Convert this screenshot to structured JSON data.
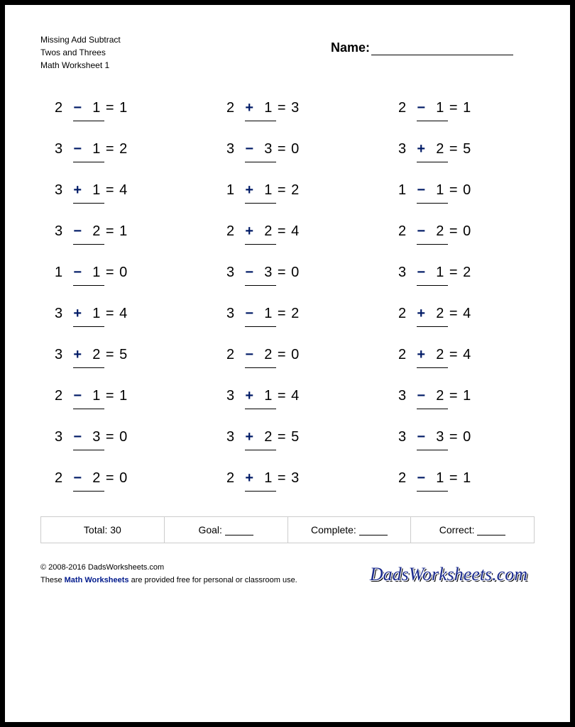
{
  "header": {
    "title_line1": "Missing Add Subtract",
    "title_line2": "Twos and Threes",
    "title_line3": "Math Worksheet 1",
    "name_label": "Name:"
  },
  "styling": {
    "operator_color": "#001a66",
    "text_color": "#000000",
    "border_color": "#000000",
    "summary_border_color": "#cccccc",
    "problem_fontsize": 20,
    "header_fontsize": 12,
    "name_fontsize": 18,
    "columns": 3,
    "rows": 10
  },
  "problems": [
    {
      "a": "2",
      "op": "−",
      "b": "1",
      "r": "1"
    },
    {
      "a": "2",
      "op": "+",
      "b": "1",
      "r": "3"
    },
    {
      "a": "2",
      "op": "−",
      "b": "1",
      "r": "1"
    },
    {
      "a": "3",
      "op": "−",
      "b": "1",
      "r": "2"
    },
    {
      "a": "3",
      "op": "−",
      "b": "3",
      "r": "0"
    },
    {
      "a": "3",
      "op": "+",
      "b": "2",
      "r": "5"
    },
    {
      "a": "3",
      "op": "+",
      "b": "1",
      "r": "4"
    },
    {
      "a": "1",
      "op": "+",
      "b": "1",
      "r": "2"
    },
    {
      "a": "1",
      "op": "−",
      "b": "1",
      "r": "0"
    },
    {
      "a": "3",
      "op": "−",
      "b": "2",
      "r": "1"
    },
    {
      "a": "2",
      "op": "+",
      "b": "2",
      "r": "4"
    },
    {
      "a": "2",
      "op": "−",
      "b": "2",
      "r": "0"
    },
    {
      "a": "1",
      "op": "−",
      "b": "1",
      "r": "0"
    },
    {
      "a": "3",
      "op": "−",
      "b": "3",
      "r": "0"
    },
    {
      "a": "3",
      "op": "−",
      "b": "1",
      "r": "2"
    },
    {
      "a": "3",
      "op": "+",
      "b": "1",
      "r": "4"
    },
    {
      "a": "3",
      "op": "−",
      "b": "1",
      "r": "2"
    },
    {
      "a": "2",
      "op": "+",
      "b": "2",
      "r": "4"
    },
    {
      "a": "3",
      "op": "+",
      "b": "2",
      "r": "5"
    },
    {
      "a": "2",
      "op": "−",
      "b": "2",
      "r": "0"
    },
    {
      "a": "2",
      "op": "+",
      "b": "2",
      "r": "4"
    },
    {
      "a": "2",
      "op": "−",
      "b": "1",
      "r": "1"
    },
    {
      "a": "3",
      "op": "+",
      "b": "1",
      "r": "4"
    },
    {
      "a": "3",
      "op": "−",
      "b": "2",
      "r": "1"
    },
    {
      "a": "3",
      "op": "−",
      "b": "3",
      "r": "0"
    },
    {
      "a": "3",
      "op": "+",
      "b": "2",
      "r": "5"
    },
    {
      "a": "3",
      "op": "−",
      "b": "3",
      "r": "0"
    },
    {
      "a": "2",
      "op": "−",
      "b": "2",
      "r": "0"
    },
    {
      "a": "2",
      "op": "+",
      "b": "1",
      "r": "3"
    },
    {
      "a": "2",
      "op": "−",
      "b": "1",
      "r": "1"
    }
  ],
  "summary": {
    "total_label": "Total: 30",
    "goal_label": "Goal:",
    "complete_label": "Complete:",
    "correct_label": "Correct:"
  },
  "footer": {
    "copyright": "© 2008-2016 DadsWorksheets.com",
    "line2_prefix": "These ",
    "line2_link": "Math Worksheets",
    "line2_suffix": " are provided free for personal or classroom use.",
    "brand": "DadsWorksheets.com"
  }
}
